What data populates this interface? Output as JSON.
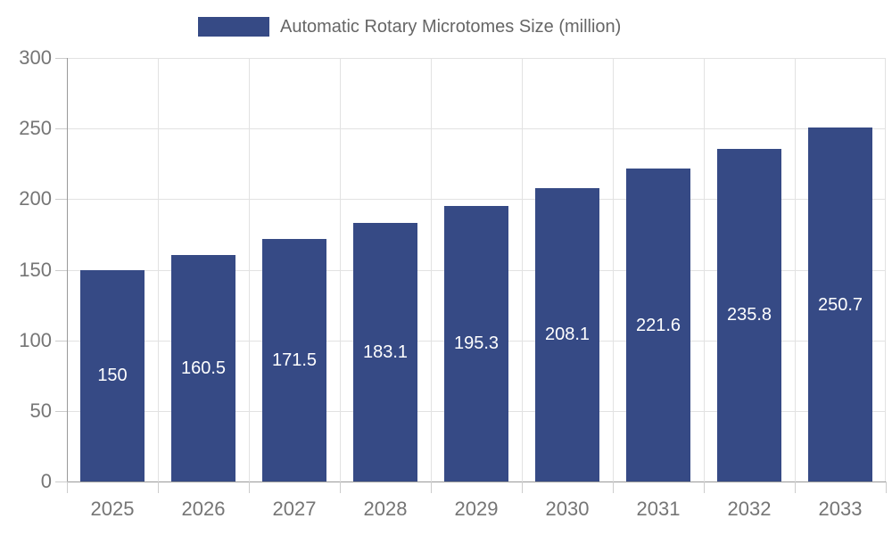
{
  "chart_data": {
    "type": "bar",
    "title": "Automatic Rotary Microtomes Size (million)",
    "xlabel": "",
    "ylabel": "",
    "categories": [
      "2025",
      "2026",
      "2027",
      "2028",
      "2029",
      "2030",
      "2031",
      "2032",
      "2033"
    ],
    "series": [
      {
        "name": "Automatic Rotary Microtomes Size (million)",
        "values": [
          150,
          160.5,
          171.5,
          183.1,
          195.3,
          208.1,
          221.6,
          235.8,
          250.7
        ],
        "value_labels": [
          "150",
          "160.5",
          "171.5",
          "183.1",
          "195.3",
          "208.1",
          "221.6",
          "235.8",
          "250.7"
        ]
      }
    ],
    "ylim": [
      0,
      300
    ],
    "yticks": [
      0,
      50,
      100,
      150,
      200,
      250,
      300
    ],
    "grid": true,
    "legend_position": "top-center",
    "colors": {
      "bar": "#364a85",
      "grid": "#e2e2e2",
      "axis": "#999999",
      "tick_mark": "#cccccc",
      "tick_text": "#757575",
      "legend_text": "#666666",
      "value_label": "#ffffff",
      "background": "#ffffff"
    }
  }
}
